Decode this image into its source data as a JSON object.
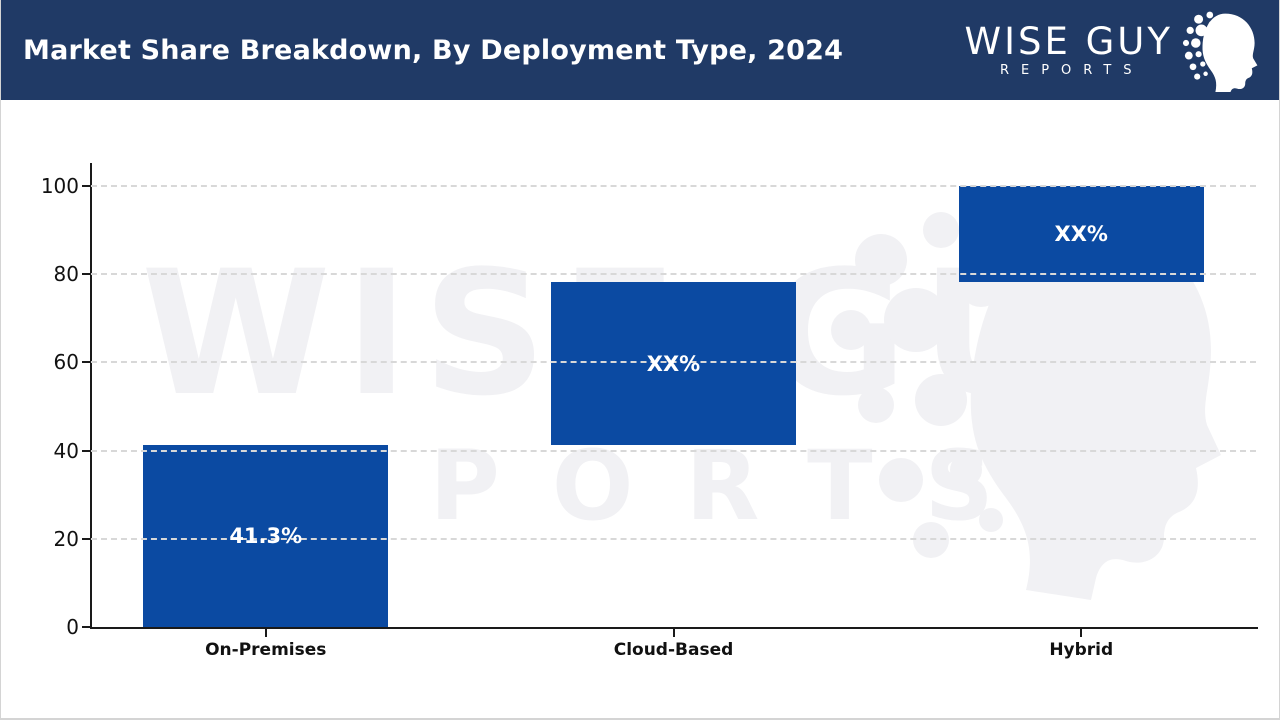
{
  "header": {
    "title": "Market Share Breakdown, By Deployment Type, 2024",
    "logo": {
      "line1": "WISE GUY",
      "line2": "REPORTS"
    }
  },
  "watermark": {
    "line1": "WISE GUY",
    "line2": "REPORTS"
  },
  "colors": {
    "header_navy": "#203a66",
    "bar_blue": "#0b4aa2",
    "gridline": "#d8d8d8",
    "watermark_gray": "#f1f1f4",
    "axis_black": "#1a1a1a",
    "label_white": "#ffffff"
  },
  "chart_data": {
    "type": "bar",
    "subtype": "waterfall",
    "title": "Market Share Breakdown, By Deployment Type, 2024",
    "categories": [
      "On-Premises",
      "Cloud-Based",
      "Hybrid"
    ],
    "segments": [
      {
        "category": "On-Premises",
        "label": "41.3%",
        "start": 0,
        "end": 41.3,
        "value": 41.3
      },
      {
        "category": "Cloud-Based",
        "label": "XX%",
        "start": 41.3,
        "end": 78.2,
        "value": 36.9
      },
      {
        "category": "Hybrid",
        "label": "XX%",
        "start": 78.2,
        "end": 100,
        "value": 21.8
      }
    ],
    "yticks": [
      0,
      20,
      40,
      60,
      80,
      100
    ],
    "ylim": [
      0,
      100
    ],
    "xlabel": "",
    "ylabel": "",
    "grid": "horizontal-dashed",
    "legend": "none",
    "bar_color": "#0b4aa2",
    "bar_label_color": "#ffffff"
  }
}
